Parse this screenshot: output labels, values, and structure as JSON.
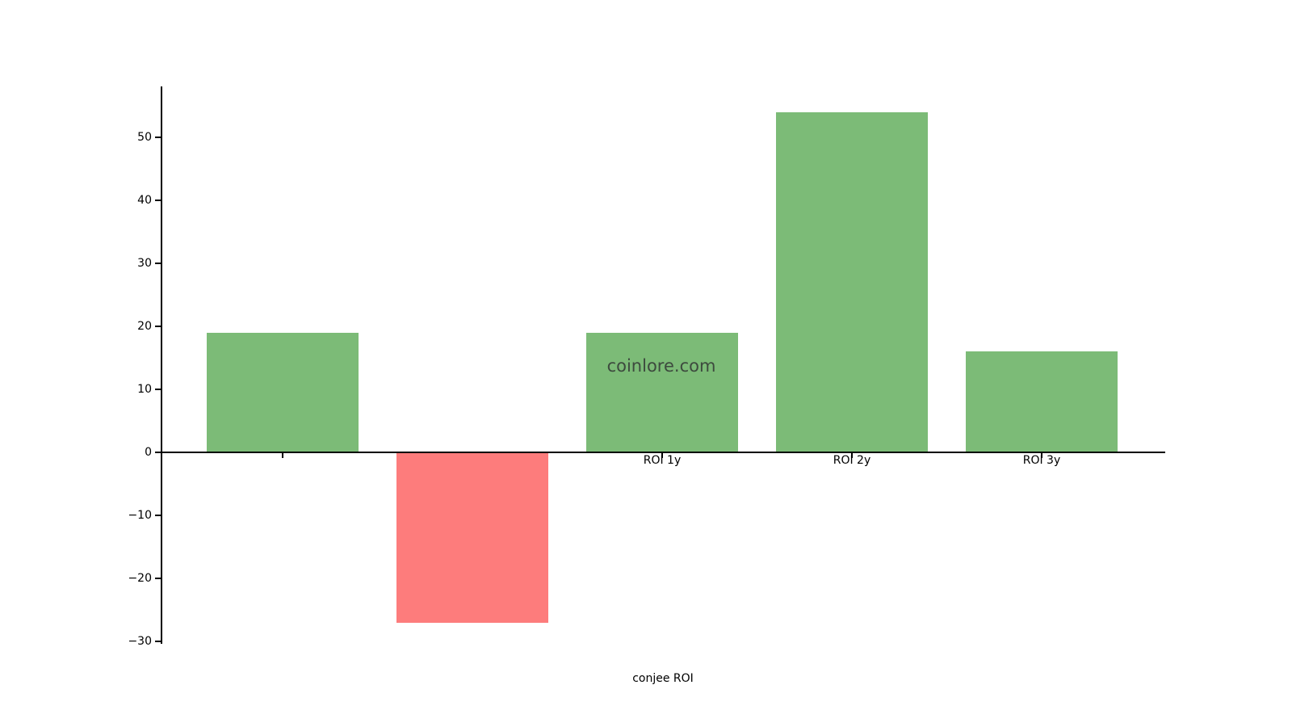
{
  "chart_data": {
    "type": "bar",
    "title": "",
    "xlabel": "conjee ROI",
    "ylabel": "",
    "categories": [
      "",
      "",
      "ROI 1y",
      "ROI 2y",
      "ROI 3y"
    ],
    "values": [
      19,
      -27,
      19,
      54,
      16
    ],
    "bar_colors": [
      "#7cbb77",
      "#fd7c7c",
      "#7cbb77",
      "#7cbb77",
      "#7cbb77"
    ],
    "positive_color": "#7cbb77",
    "negative_color": "#fd7c7c",
    "yticks": [
      50,
      40,
      30,
      20,
      10,
      0,
      -10,
      -20,
      -30
    ],
    "ylim": [
      -31,
      58.5
    ],
    "grid": false,
    "legend": null,
    "axis_color": "#000000"
  },
  "watermark": {
    "text": "coinlore.com",
    "color": "#3d4a3e"
  }
}
